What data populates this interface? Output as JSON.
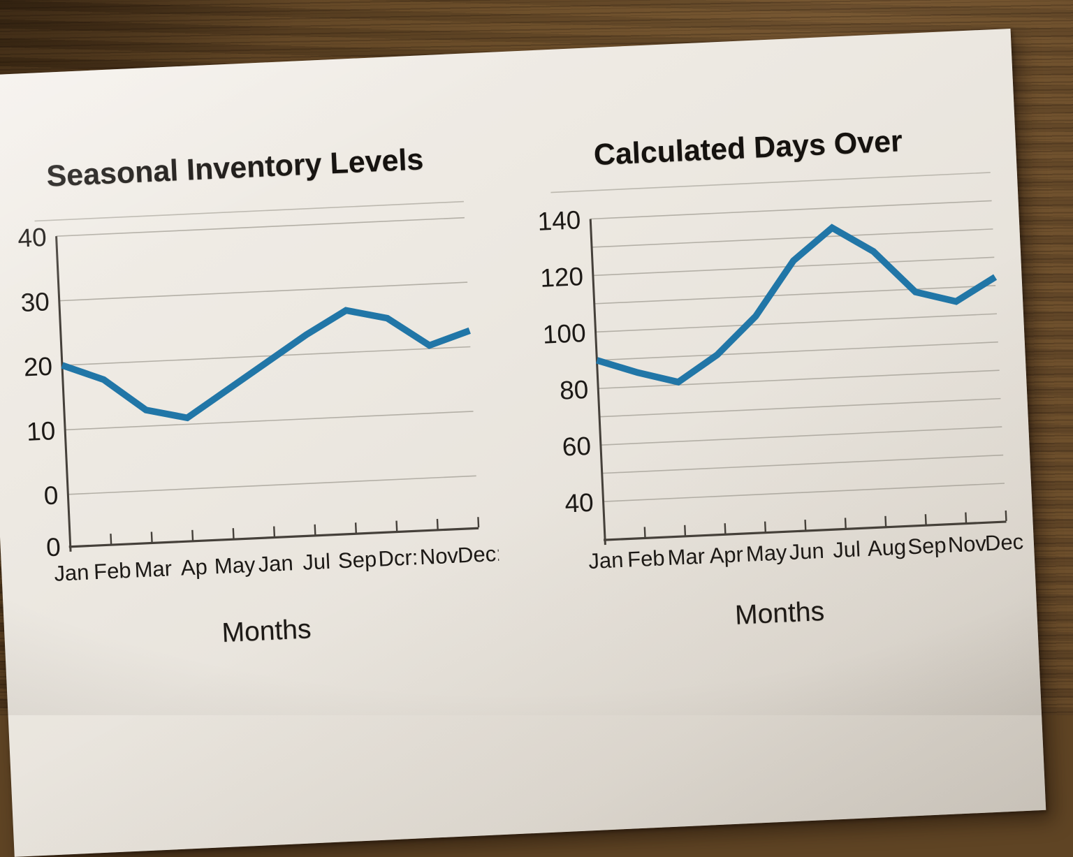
{
  "scene": {
    "surface": "wood-table",
    "paper_color": "#ece8e1",
    "wood_color": "#6b4e2b",
    "ink_color": "#1c1916",
    "gridline_color": "#b3afa6",
    "axis_color": "#45403a",
    "line_color": "#2176a7"
  },
  "chart_data": [
    {
      "type": "line",
      "title": "Seasonal Inventory Levels",
      "xlabel": "Months",
      "ylabel": "",
      "categories": [
        "Jan",
        "Feb",
        "Mar",
        "Ap",
        "May",
        "Jan",
        "Jul",
        "Sep",
        "Dcr:",
        "Nov",
        "Dec:"
      ],
      "values": [
        20,
        17.5,
        12.5,
        11,
        15,
        19,
        23,
        26.5,
        25,
        20.5,
        22.5
      ],
      "y_ticks": [
        40,
        30,
        20,
        10,
        0
      ],
      "extra_corner_label": "0",
      "ylim": [
        0,
        40
      ],
      "grid": true,
      "legend": false,
      "line_color": "#2176a7"
    },
    {
      "type": "line",
      "title": "Calculated Days Over",
      "xlabel": "Months",
      "ylabel": "",
      "categories": [
        "Jan",
        "Feb",
        "Mar",
        "Apr",
        "May",
        "Jun",
        "Jul",
        "Aug",
        "Sep",
        "Nov",
        "Dec:"
      ],
      "values": [
        90,
        85,
        81,
        90,
        103,
        122,
        133,
        124,
        109,
        105,
        113
      ],
      "y_ticks": [
        140,
        120,
        100,
        80,
        60,
        40
      ],
      "extra_corner_label": "",
      "ylim": [
        40,
        140
      ],
      "grid": true,
      "legend": false,
      "line_color": "#2176a7"
    }
  ]
}
